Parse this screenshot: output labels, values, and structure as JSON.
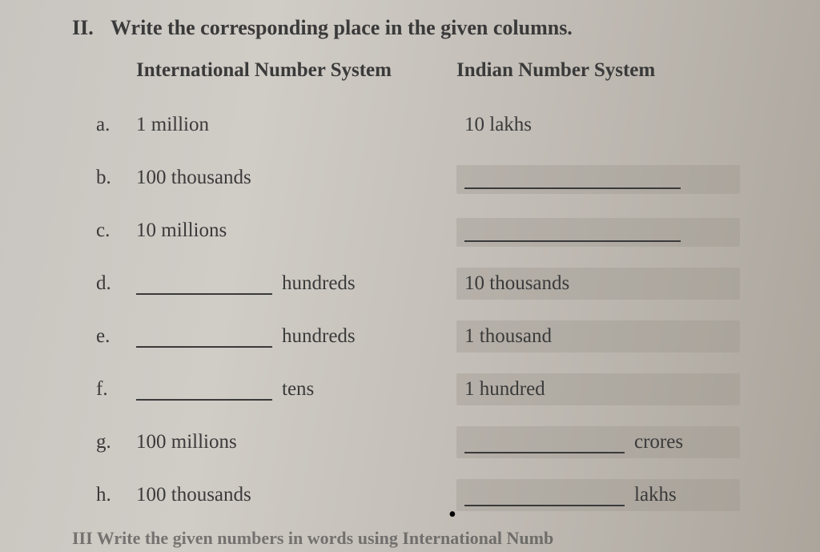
{
  "section": {
    "number": "II.",
    "title": "Write the corresponding place in the given columns."
  },
  "headers": {
    "left": "International Number System",
    "right": "Indian Number System"
  },
  "rows": {
    "a": {
      "letter": "a.",
      "left_text": "1 million",
      "right_text": "10 lakhs",
      "left_has_blank": false,
      "right_has_blank": false,
      "shaded": false
    },
    "b": {
      "letter": "b.",
      "left_text": "100 thousands",
      "right_text": "",
      "left_has_blank": false,
      "right_has_blank": true,
      "right_blank_only": true,
      "shaded": true
    },
    "c": {
      "letter": "c.",
      "left_text": "10 millions",
      "right_text": "",
      "left_has_blank": false,
      "right_has_blank": true,
      "right_blank_only": true,
      "shaded": true
    },
    "d": {
      "letter": "d.",
      "left_text_after": "hundreds",
      "right_text": "10 thousands",
      "left_has_blank": true,
      "right_has_blank": false,
      "shaded": true
    },
    "e": {
      "letter": "e.",
      "left_text_after": "hundreds",
      "right_text": "1 thousand",
      "left_has_blank": true,
      "right_has_blank": false,
      "shaded": true
    },
    "f": {
      "letter": "f.",
      "left_text_after": "tens",
      "right_text": "1 hundred",
      "left_has_blank": true,
      "right_has_blank": false,
      "shaded": true
    },
    "g": {
      "letter": "g.",
      "left_text": "100 millions",
      "right_text_after": "crores",
      "left_has_blank": false,
      "right_has_blank": true,
      "shaded": true
    },
    "h": {
      "letter": "h.",
      "left_text": "100 thousands",
      "right_text_after": "lakhs",
      "left_has_blank": false,
      "right_has_blank": true,
      "shaded": true
    }
  },
  "bottom_cut": "III   Write the given numbers in words using International Numb"
}
